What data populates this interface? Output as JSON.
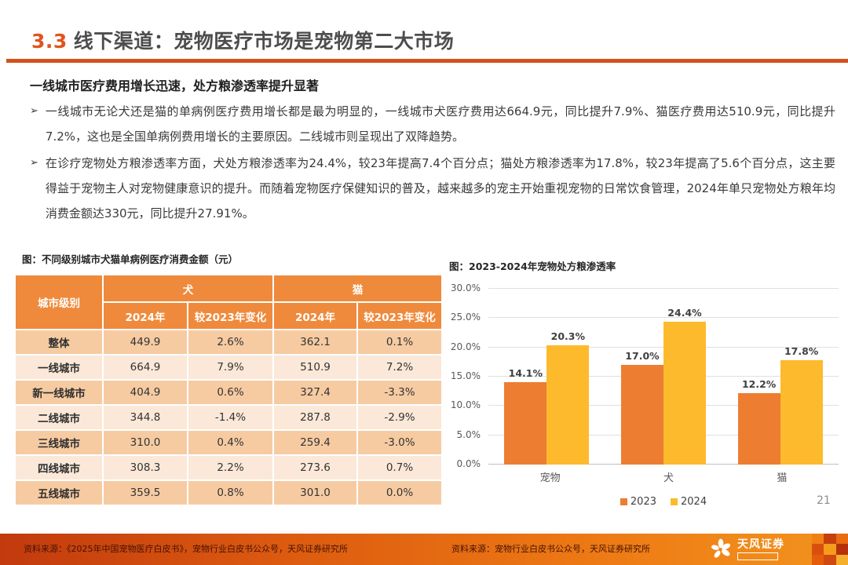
{
  "page": {
    "title_number": "3.3",
    "title": "线下渠道：宠物医疗市场是宠物第二大市场",
    "page_number": "21",
    "accent_color": "#d4511b"
  },
  "summary": {
    "heading": "一线城市医疗费用增长迅速，处方粮渗透率提升显著",
    "bullet_glyph": "➢",
    "bullets": [
      "一线城市无论犬还是猫的单病例医疗费用增长都是最为明显的，一线城市犬医疗费用达664.9元，同比提升7.9%、猫医疗费用达510.9元，同比提升7.2%，这也是全国单病例费用增长的主要原因。二线城市则呈现出了双降趋势。",
      "在诊疗宠物处方粮渗透率方面，犬处方粮渗透率为24.4%，较23年提高7.4个百分点；猫处方粮渗透率为17.8%，较23年提高了5.6个百分点，这主要得益于宠物主人对宠物健康意识的提升。而随着宠物医疗保健知识的普及，越来越多的宠主开始重视宠物的日常饮食管理，2024年单只宠物处方粮年均消费金额达330元，同比提升27.91%。"
    ]
  },
  "table": {
    "caption": "图：不同级别城市犬猫单病例医疗消费金额（元）",
    "corner_header": "城市级别",
    "groups": [
      {
        "label": "犬",
        "cols": [
          "2024年",
          "较2023年变化"
        ]
      },
      {
        "label": "猫",
        "cols": [
          "2024年",
          "较2023年变化"
        ]
      }
    ],
    "rows": [
      {
        "label": "整体",
        "values": [
          "449.9",
          "2.6%",
          "362.1",
          "0.1%"
        ]
      },
      {
        "label": "一线城市",
        "values": [
          "664.9",
          "7.9%",
          "510.9",
          "7.2%"
        ]
      },
      {
        "label": "新一线城市",
        "values": [
          "404.9",
          "0.6%",
          "327.4",
          "-3.3%"
        ]
      },
      {
        "label": "二线城市",
        "values": [
          "344.8",
          "-1.4%",
          "287.8",
          "-2.9%"
        ]
      },
      {
        "label": "三线城市",
        "values": [
          "310.0",
          "0.4%",
          "259.4",
          "-3.0%"
        ]
      },
      {
        "label": "四线城市",
        "values": [
          "308.3",
          "2.2%",
          "273.6",
          "0.7%"
        ]
      },
      {
        "label": "五线城市",
        "values": [
          "359.5",
          "0.8%",
          "301.0",
          "0.0%"
        ]
      }
    ],
    "header_bg": "#ef8a3c",
    "row_bg_dark": "#f6cba2",
    "row_bg_light": "#fbe8d8"
  },
  "chart_data": {
    "type": "bar",
    "title": "图：2023-2024年宠物处方粮渗透率",
    "categories": [
      "宠物",
      "犬",
      "猫"
    ],
    "series": [
      {
        "name": "2023",
        "color": "#ed7d31",
        "values": [
          14.1,
          17.0,
          12.2
        ]
      },
      {
        "name": "2024",
        "color": "#fdba2d",
        "values": [
          20.3,
          24.4,
          17.8
        ]
      }
    ],
    "ylim": [
      0,
      30
    ],
    "yticks": [
      "30.0%",
      "25.0%",
      "20.0%",
      "15.0%",
      "10.0%",
      "5.0%",
      "0.0%"
    ],
    "grid": true,
    "legend_position": "bottom",
    "xlabel": "",
    "ylabel": ""
  },
  "footer": {
    "source_left": "资料来源：《2025年中国宠物医疗白皮书》，宠物行业白皮书公众号，天风证券研究所",
    "source_right": "资料来源：宠物行业白皮书公众号，天风证券研究所",
    "logo_text": "天风证券",
    "mosaic_colors": [
      "#f08014",
      "#c63e0e",
      "#e96a10",
      "#d9500e",
      "#f59c1a",
      "#b5310c",
      "#e55c0b",
      "#ce4a10",
      "#f6ae2d"
    ]
  }
}
